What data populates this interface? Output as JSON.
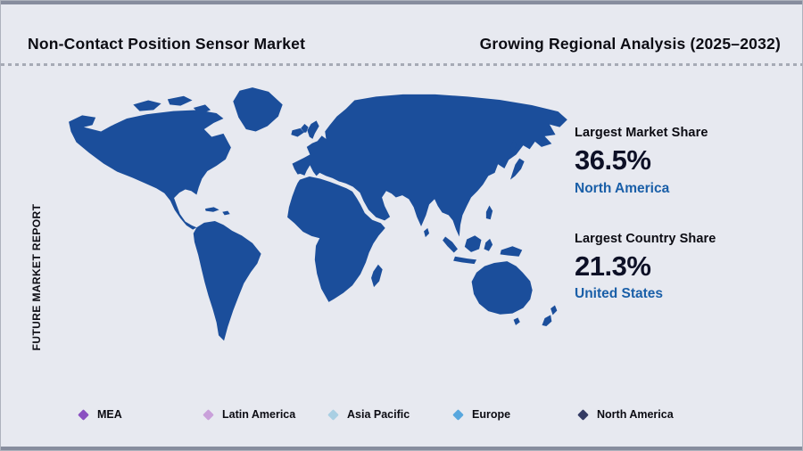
{
  "header": {
    "title_left": "Non-Contact Position Sensor Market",
    "title_right": "Growing Regional Analysis (2025–2032)"
  },
  "watermark": "FUTURE MARKET REPORT",
  "stats": {
    "market_share": {
      "label": "Largest Market Share",
      "value": "36.5%",
      "region": "North America"
    },
    "country_share": {
      "label": "Largest Country Share",
      "value": "21.3%",
      "region": "United States"
    }
  },
  "legend": {
    "items": [
      {
        "label": "MEA",
        "color": "#8a4fc1"
      },
      {
        "label": "Latin America",
        "color": "#c9a0da"
      },
      {
        "label": "Asia Pacific",
        "color": "#a9cfe3"
      },
      {
        "label": "Europe",
        "color": "#58a7de"
      },
      {
        "label": "North America",
        "color": "#333a63"
      }
    ]
  },
  "map": {
    "icon": "world-map",
    "fill": "#1b4e9b"
  },
  "colors": {
    "background": "#e7e9f0",
    "map_blue": "#1b4e9b",
    "accent_blue": "#1a5fa8",
    "text_dark": "#0d1026",
    "divider": "#a6aab5"
  },
  "chart_data": {
    "type": "map",
    "title": "Non-Contact Position Sensor Market",
    "subtitle": "Growing Regional Analysis (2025–2032)",
    "regions": [
      "MEA",
      "Latin America",
      "Asia Pacific",
      "Europe",
      "North America"
    ],
    "data_points": [
      {
        "label": "Largest Market Share",
        "name": "North America",
        "value_pct": 36.5
      },
      {
        "label": "Largest Country Share",
        "name": "United States",
        "value_pct": 21.3
      }
    ],
    "legend_position": "bottom",
    "map_color": "#1b4e9b"
  }
}
